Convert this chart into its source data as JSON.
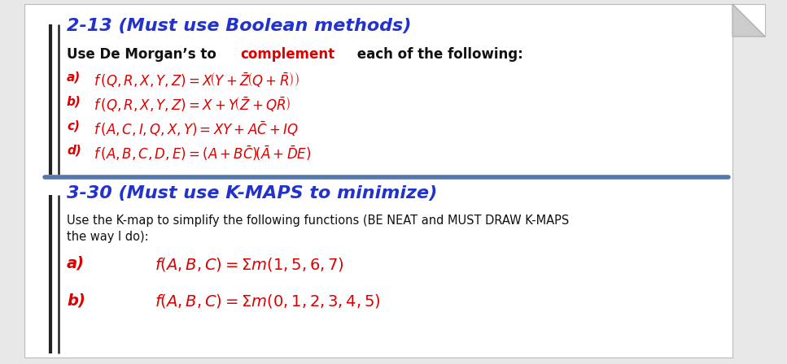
{
  "bg_outer": "#e8e8e8",
  "bg_panel": "#ffffff",
  "blue": "#2233cc",
  "red": "#dd0000",
  "black": "#111111",
  "divider": "#5577aa",
  "section1_title": "2-13 (Must use Boolean methods)",
  "section2_title": "3-30 (Must use K-MAPS to minimize)",
  "intro_line": "Use the K-map to simplify the following functions (BE NEAT and MUST DRAW K-MAPS",
  "intro_line2": "the way I do):"
}
